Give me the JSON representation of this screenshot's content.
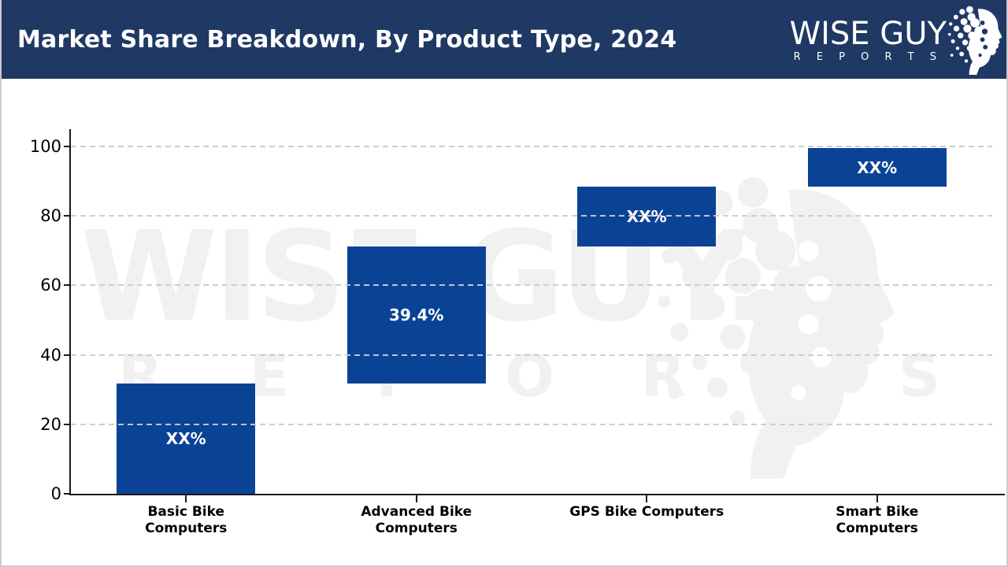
{
  "header": {
    "title": "Market Share Breakdown, By Product Type, 2024",
    "bg_color": "#1f3864",
    "logo": {
      "name": "WISE GUY",
      "sub": "R E P O R T S"
    }
  },
  "watermark": {
    "line1": "WISE GUY.",
    "line2": "R E P O R T S ."
  },
  "chart_data": {
    "type": "bar",
    "subtype": "waterfall",
    "title": "Market Share Breakdown, By Product Type, 2024",
    "xlabel": "",
    "ylabel": "",
    "categories": [
      "Basic Bike\nComputers",
      "Advanced Bike\nComputers",
      "GPS Bike Computers",
      "Smart Bike\nComputers"
    ],
    "segments": [
      {
        "category": "Basic Bike Computers",
        "label": "XX%",
        "start": 0,
        "end": 31.7
      },
      {
        "category": "Advanced Bike Computers",
        "label": "39.4%",
        "start": 31.7,
        "end": 71.1
      },
      {
        "category": "GPS Bike Computers",
        "label": "XX%",
        "start": 71.1,
        "end": 88.4
      },
      {
        "category": "Smart Bike Computers",
        "label": "XX%",
        "start": 88.4,
        "end": 99.5
      }
    ],
    "yticks": [
      0,
      20,
      40,
      60,
      80,
      100
    ],
    "ylim": [
      0,
      105
    ],
    "grid": true,
    "grid_style": "dashed",
    "grid_position": "above-bars",
    "bar_color": "#0a4396",
    "value_label_color": "#ffffff",
    "axis_color": "#1a1a1a",
    "gridline_color": "#cbcbcb"
  }
}
